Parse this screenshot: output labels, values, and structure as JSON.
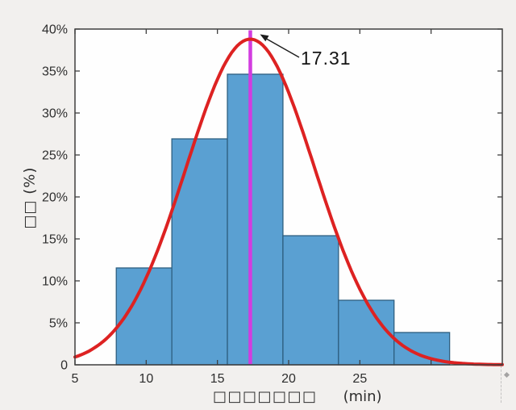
{
  "figure": {
    "bg_color": "#f2f0ee",
    "plot_bg_color": "#fefefe",
    "frame_color": "#3f3f3f",
    "tick_label_color": "#2e2e2e"
  },
  "chart_data": {
    "type": "bar",
    "subtype": "histogram_with_normal_fit",
    "title": "",
    "ylabel": "□□ (%)",
    "xlabel_cjk_boxes": "□□□□□□□",
    "xlabel_unit": "(min)",
    "xlim": [
      5,
      35
    ],
    "ylim": [
      0,
      40
    ],
    "grid": false,
    "legend": false,
    "xticks": [
      {
        "value": 5,
        "label": "5"
      },
      {
        "value": 10,
        "label": "10"
      },
      {
        "value": 15,
        "label": "15"
      },
      {
        "value": 20,
        "label": "20"
      },
      {
        "value": 25,
        "label": "25"
      },
      {
        "value": 30,
        "label": ""
      }
    ],
    "yticks": [
      {
        "value": 0,
        "label": "0"
      },
      {
        "value": 5,
        "label": "5%"
      },
      {
        "value": 10,
        "label": "10%"
      },
      {
        "value": 15,
        "label": "15%"
      },
      {
        "value": 20,
        "label": "20%"
      },
      {
        "value": 25,
        "label": "25%"
      },
      {
        "value": 30,
        "label": "30%"
      },
      {
        "value": 35,
        "label": "35%"
      },
      {
        "value": 40,
        "label": "40%"
      }
    ],
    "bin_edges": [
      7.9,
      11.8,
      15.7,
      19.6,
      23.5,
      27.4,
      31.3
    ],
    "values_pct": [
      11.54,
      26.92,
      34.62,
      15.38,
      7.69,
      3.85
    ],
    "fit_curve": {
      "distribution": "normal",
      "mean": 17.31,
      "sigma": 4.5,
      "peak_pct": 38.8
    },
    "mean_line_x": 17.31,
    "annotation_text": "17.31",
    "colors": {
      "bar_fill": "#5aa0d2",
      "bar_edge": "#2e5f80",
      "fit_curve": "#dd2222",
      "mean_line": "#d23ce0",
      "annotation": "#141414"
    }
  }
}
